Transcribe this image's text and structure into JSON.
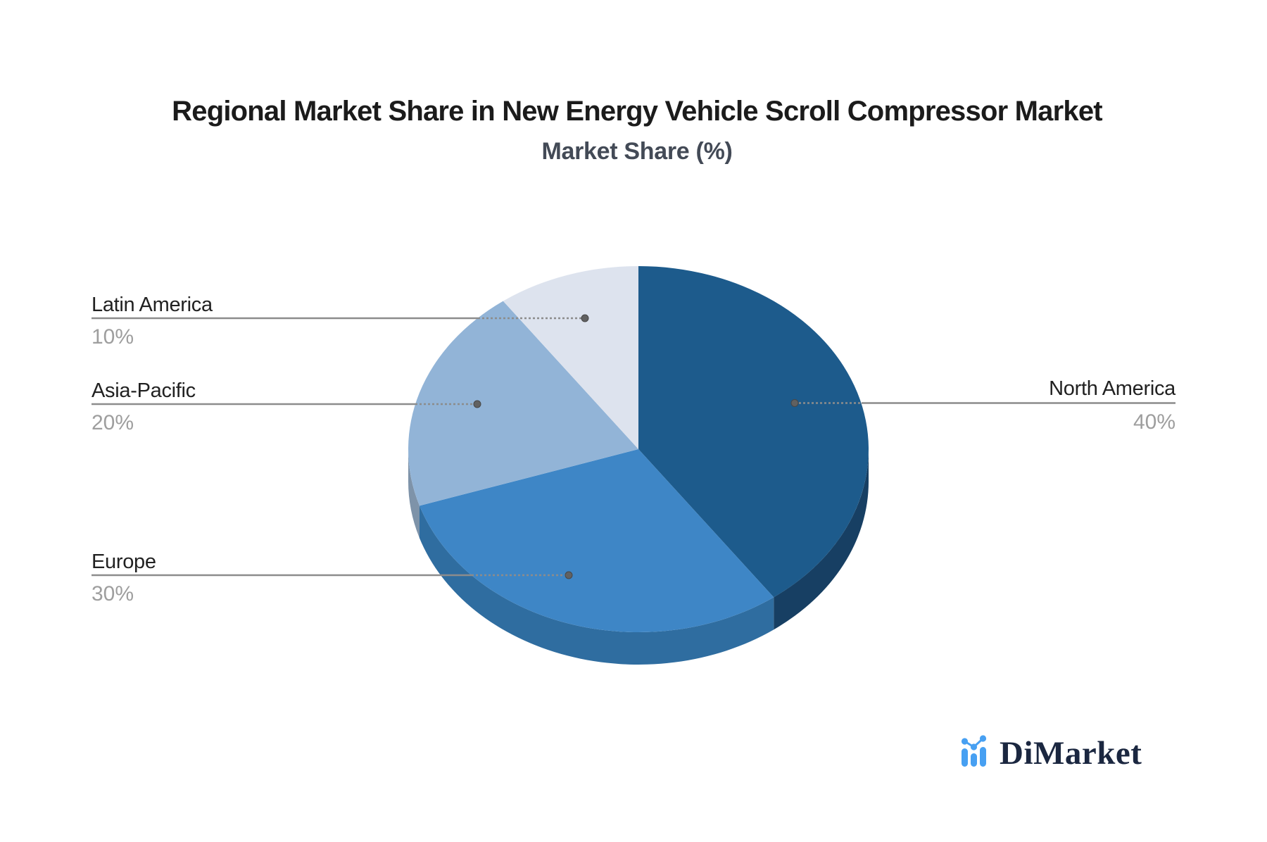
{
  "header": {
    "title": "Regional Market Share in New Energy Vehicle Scroll Compressor Market",
    "subtitle": "Market Share (%)"
  },
  "chart_data": {
    "type": "pie",
    "style": "3d",
    "title": "Regional Market Share in New Energy Vehicle Scroll Compressor Market",
    "value_axis_label": "Market Share (%)",
    "unit": "%",
    "start_angle_deg": 0,
    "direction": "clockwise",
    "slices": [
      {
        "label": "North America",
        "value": 40,
        "pct": "40%",
        "color": "#1d5b8c",
        "side_color": "#173f63"
      },
      {
        "label": "Europe",
        "value": 30,
        "pct": "30%",
        "color": "#3e86c6",
        "side_color": "#2f6da0"
      },
      {
        "label": "Asia-Pacific",
        "value": 20,
        "pct": "20%",
        "color": "#92b4d7",
        "side_color": "#7e93a9"
      },
      {
        "label": "Latin America",
        "value": 10,
        "pct": "10%",
        "color": "#dde3ee",
        "side_color": "#c6cfdd"
      }
    ],
    "legend": "none",
    "leader_line_color": "#8c8c8c",
    "label_color": "#212121",
    "value_color": "#9e9e9e"
  },
  "branding": {
    "name": "DiMarket",
    "icon": "bar-chart-logo-icon",
    "text_color": "#1b2740",
    "icon_color": "#47a0f2"
  }
}
